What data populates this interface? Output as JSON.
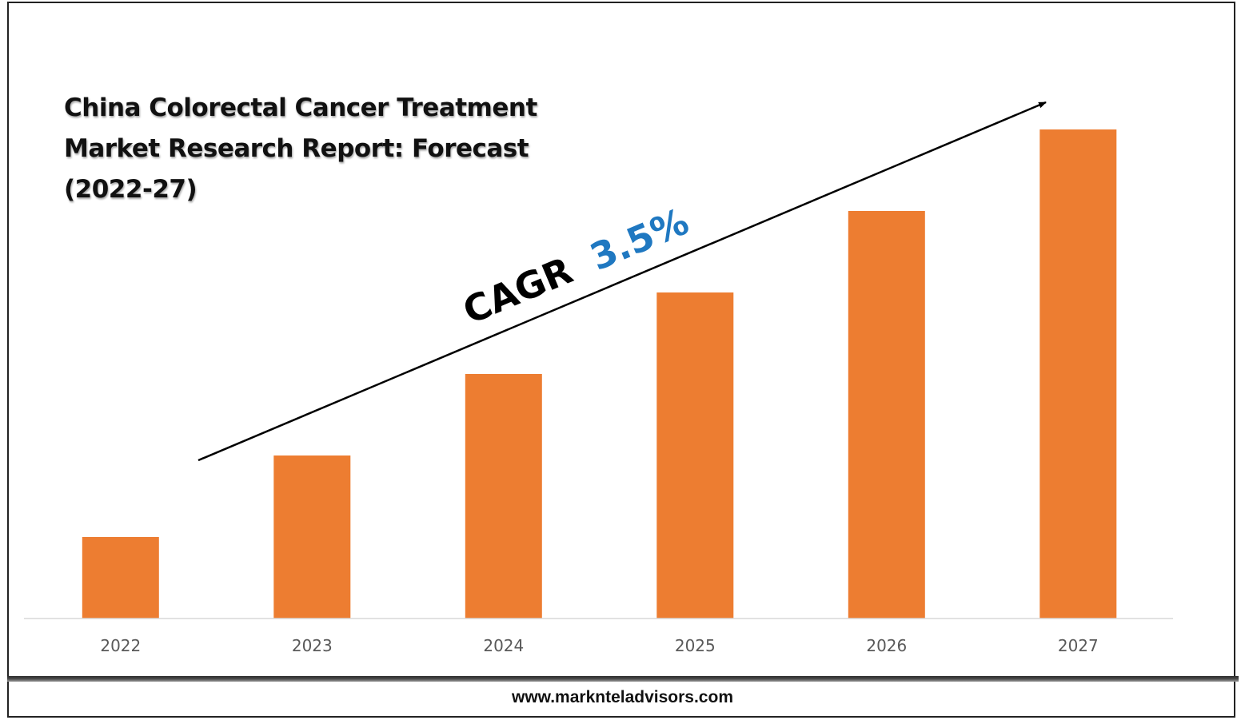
{
  "chart_data": {
    "type": "bar",
    "title": "China Colorectal Cancer Treatment\nMarket Research Report: Forecast\n(2022-27)",
    "categories": [
      "2022",
      "2023",
      "2024",
      "2025",
      "2026",
      "2027"
    ],
    "values": [
      1,
      2,
      3,
      4,
      5,
      6
    ],
    "ylim": [
      0,
      6
    ],
    "y_axis_visible": false,
    "grid": false,
    "bar_color": "#ED7D31",
    "annotation": {
      "label": "CAGR",
      "value": "3.5%",
      "label_color": "#000000",
      "value_color": "#1F78C1",
      "trend_arrow": true
    }
  },
  "footer": {
    "website": "www.marknteladvisors.com"
  }
}
